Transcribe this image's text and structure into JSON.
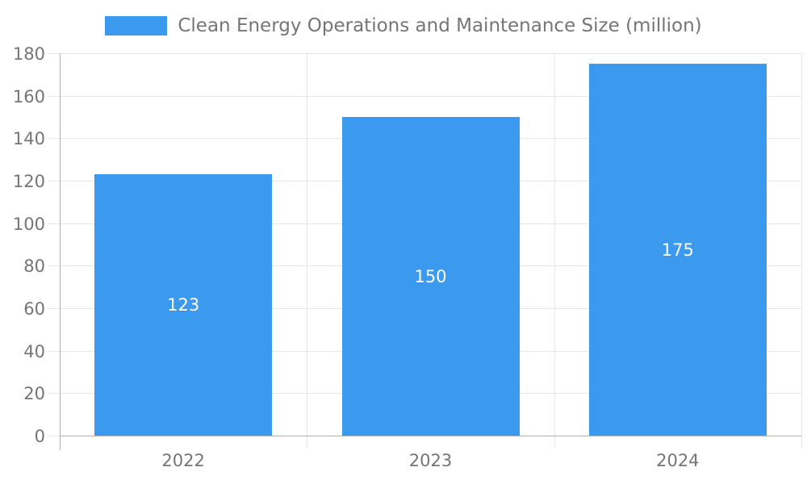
{
  "legend": {
    "label": "Clean Energy Operations and Maintenance Size (million)"
  },
  "colors": {
    "bar": "#3b99ee",
    "grid": "#e6e6e6",
    "axis": "#b0b0b0",
    "label": "#757575",
    "value_label": "#ffffff",
    "background": "#ffffff"
  },
  "chart_data": {
    "type": "bar",
    "title": "Clean Energy Operations and Maintenance Size (million)",
    "categories": [
      "2022",
      "2023",
      "2024"
    ],
    "series": [
      {
        "name": "Clean Energy Operations and Maintenance Size (million)",
        "values": [
          123,
          150,
          175
        ],
        "color": "#3b99ee"
      }
    ],
    "xlabel": "",
    "ylabel": "",
    "ylim": [
      0,
      180
    ],
    "yticks": [
      0,
      20,
      40,
      60,
      80,
      100,
      120,
      140,
      160,
      180
    ],
    "grid": true,
    "legend_position": "top-center",
    "value_labels": {
      "show": true,
      "position": "inside-center",
      "color": "#ffffff"
    }
  }
}
